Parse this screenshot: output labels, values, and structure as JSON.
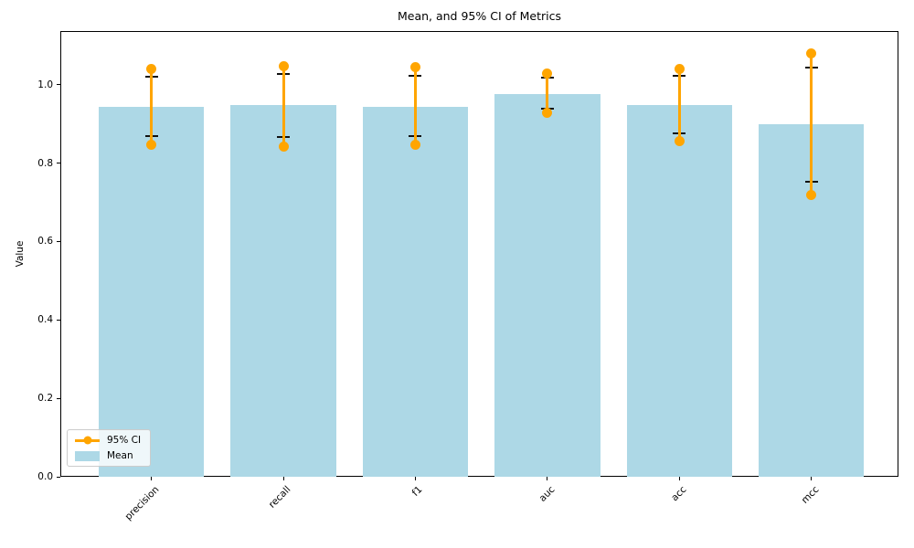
{
  "chart_data": {
    "type": "bar",
    "title": "Mean, and 95% CI of Metrics",
    "xlabel": "",
    "ylabel": "Value",
    "categories": [
      "precision",
      "recall",
      "f1",
      "auc",
      "acc",
      "mcc"
    ],
    "series": [
      {
        "name": "Mean",
        "role": "bar",
        "color": "#add8e6",
        "values": [
          0.943,
          0.948,
          0.943,
          0.977,
          0.948,
          0.899
        ]
      },
      {
        "name": "95% CI",
        "role": "errorbar-line-with-markers",
        "color": "#ffa500",
        "low": [
          0.848,
          0.843,
          0.846,
          0.928,
          0.857,
          0.719
        ],
        "high": [
          1.041,
          1.048,
          1.044,
          1.028,
          1.04,
          1.08
        ]
      },
      {
        "name": "whisker-caps",
        "role": "caps",
        "color": "#111111",
        "low": [
          0.869,
          0.867,
          0.868,
          0.939,
          0.876,
          0.752
        ],
        "high": [
          1.02,
          1.027,
          1.023,
          1.018,
          1.022,
          1.044
        ]
      }
    ],
    "ylim": [
      0,
      1.137
    ],
    "yticks": [
      0.0,
      0.2,
      0.4,
      0.6,
      0.8,
      1.0
    ],
    "ytick_labels": [
      "0.0",
      "0.2",
      "0.4",
      "0.6",
      "0.8",
      "1.0"
    ],
    "xtick_rotation_deg": 45,
    "grid": false,
    "legend_position": "lower left"
  },
  "legend": {
    "items": [
      {
        "label": "95% CI",
        "swatch": "orange-line-with-dot",
        "color": "#ffa500"
      },
      {
        "label": "Mean",
        "swatch": "lightblue-patch",
        "color": "#add8e6"
      }
    ]
  }
}
